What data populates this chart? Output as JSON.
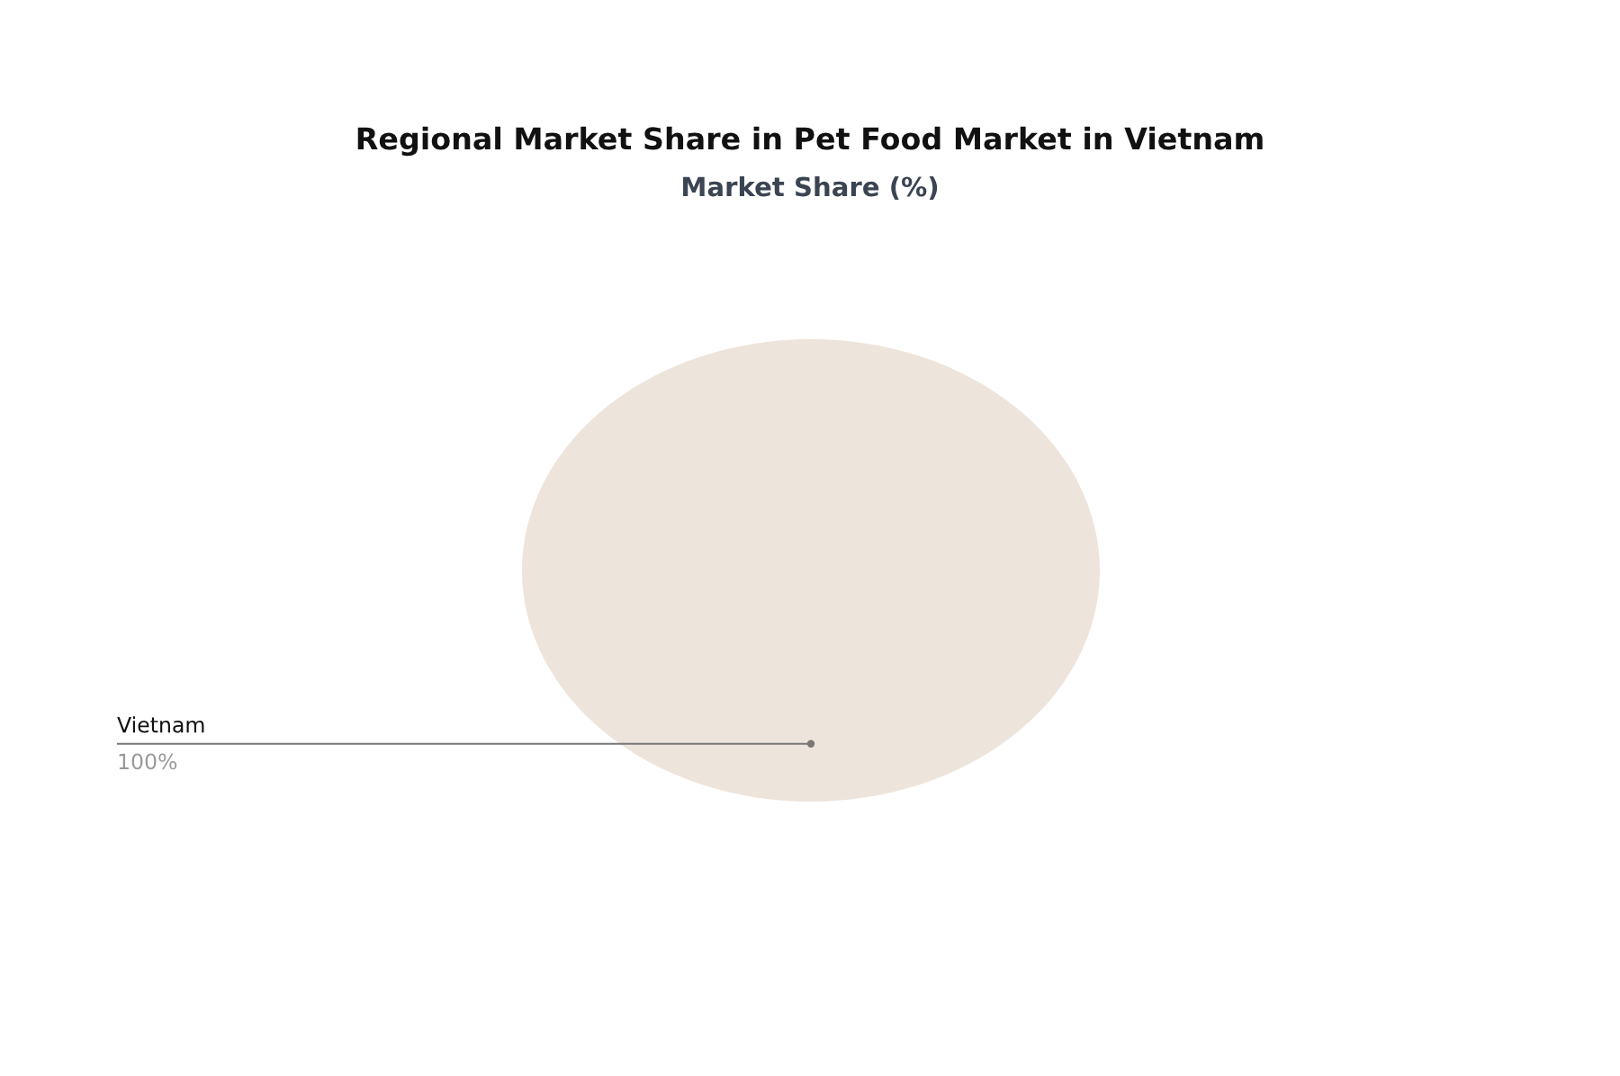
{
  "chart_data": {
    "type": "pie",
    "title": "Regional Market Share in Pet Food Market in Vietnam",
    "subtitle": "Market Share (%)",
    "categories": [
      "Vietnam"
    ],
    "values": [
      100
    ],
    "colors": [
      "#ede4db"
    ],
    "value_labels": [
      "100%"
    ]
  }
}
